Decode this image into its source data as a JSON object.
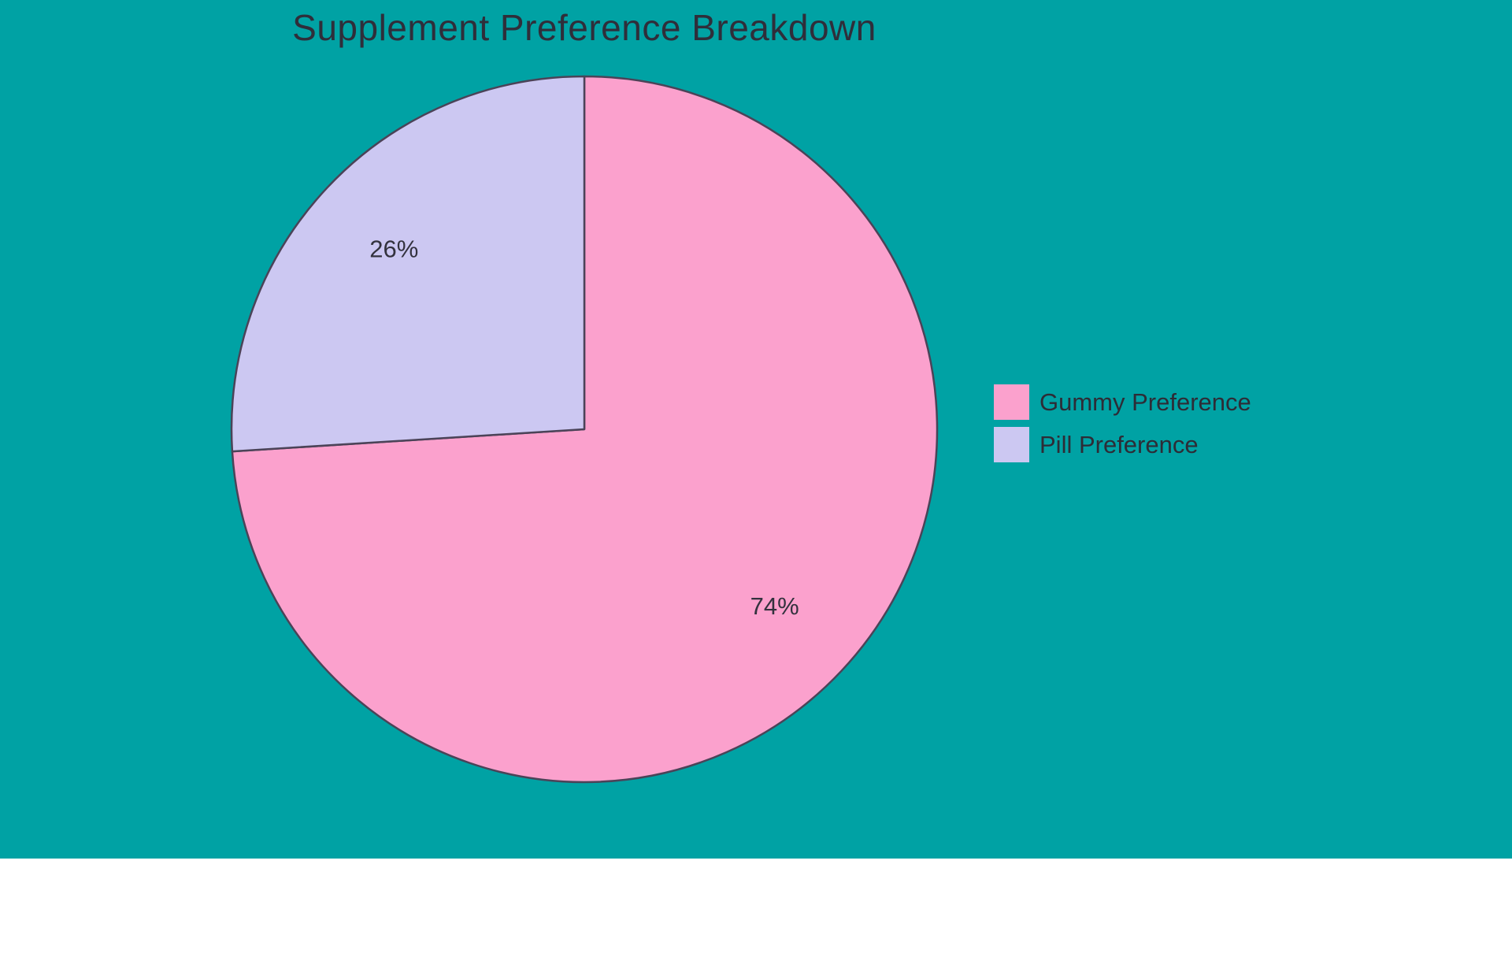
{
  "chart_data": {
    "type": "pie",
    "title": "Supplement Preference Breakdown",
    "background": "#00a2a4",
    "stroke_color": "#4b4358",
    "label_color": "#33323e",
    "legend_position": "right",
    "slices": [
      {
        "label": "Gummy Preference",
        "value": 74,
        "display": "74%",
        "color": "#fba1cd"
      },
      {
        "label": "Pill Preference",
        "value": 26,
        "display": "26%",
        "color": "#ccc8f2"
      }
    ]
  }
}
